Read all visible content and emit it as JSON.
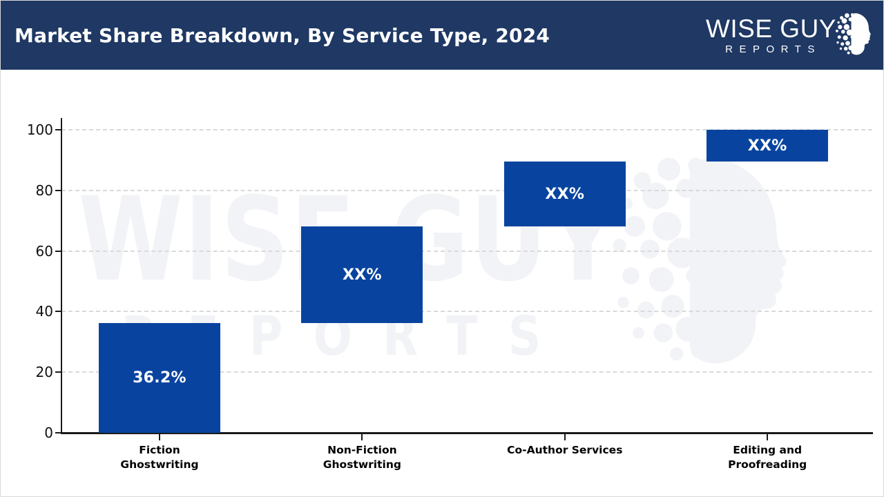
{
  "header": {
    "title": "Market Share Breakdown, By Service Type, 2024",
    "brand": {
      "wordmark": "WISE GUY",
      "subtext": "REPORTS"
    }
  },
  "watermark": {
    "wordmark": "WISE GUY",
    "subtext": "REPORTS"
  },
  "chart_data": {
    "type": "bar",
    "subtype": "waterfall",
    "title": "Market Share Breakdown, By Service Type, 2024",
    "categories": [
      "Fiction Ghostwriting",
      "Non-Fiction Ghostwriting",
      "Co-Author Services",
      "Editing and Proofreading"
    ],
    "category_label_lines": [
      [
        "Fiction",
        "Ghostwriting"
      ],
      [
        "Non-Fiction",
        "Ghostwriting"
      ],
      [
        "Co-Author Services"
      ],
      [
        "Editing and",
        "Proofreading"
      ]
    ],
    "segments": [
      {
        "category": "Fiction Ghostwriting",
        "start": 0,
        "end": 36.2,
        "label": "36.2%"
      },
      {
        "category": "Non-Fiction Ghostwriting",
        "start": 36.2,
        "end": 68,
        "label": "XX%"
      },
      {
        "category": "Co-Author Services",
        "start": 68,
        "end": 89.5,
        "label": "XX%"
      },
      {
        "category": "Editing and Proofreading",
        "start": 89.5,
        "end": 100,
        "label": "XX%"
      }
    ],
    "yticks": [
      0,
      20,
      40,
      60,
      80,
      100
    ],
    "ylim": [
      0,
      104
    ],
    "xlabel": "",
    "ylabel": "",
    "grid": "horizontal-dashed",
    "legend": "none"
  },
  "colors": {
    "header_bg": "#1f3864",
    "header_text": "#ffffff",
    "bar": "#08449f",
    "bar_label": "#ffffff",
    "grid": "#d9d9d9",
    "axis": "#1a1a1a",
    "tick_label": "#111111",
    "watermark": "#f2f3f6",
    "page_bg": "#ffffff"
  }
}
